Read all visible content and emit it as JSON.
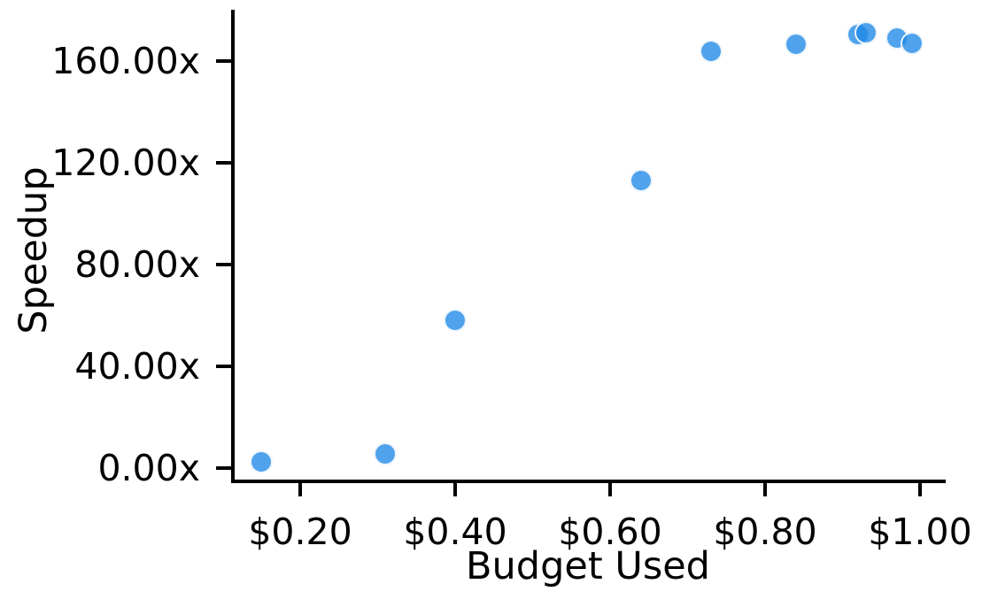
{
  "chart_data": {
    "type": "scatter",
    "title": "",
    "xlabel": "Budget Used",
    "ylabel": "Speedup",
    "x_ticks": [
      {
        "value": 0.2,
        "label": "$0.20"
      },
      {
        "value": 0.4,
        "label": "$0.40"
      },
      {
        "value": 0.6,
        "label": "$0.60"
      },
      {
        "value": 0.8,
        "label": "$0.80"
      },
      {
        "value": 1.0,
        "label": "$1.00"
      }
    ],
    "y_ticks": [
      {
        "value": 0,
        "label": "0.00x"
      },
      {
        "value": 40,
        "label": "40.00x"
      },
      {
        "value": 80,
        "label": "80.00x"
      },
      {
        "value": 120,
        "label": "120.00x"
      },
      {
        "value": 160,
        "label": "160.00x"
      }
    ],
    "xlim": [
      0.113,
      1.033
    ],
    "ylim": [
      -5.2,
      180
    ],
    "grid": false,
    "legend": null,
    "marker": {
      "shape": "circle",
      "fill_color": "#1e88e5",
      "fill_alpha": 0.78,
      "edge_color": "#ffffff"
    },
    "points": [
      {
        "x": 0.15,
        "y": 2.4
      },
      {
        "x": 0.31,
        "y": 5.5
      },
      {
        "x": 0.4,
        "y": 58
      },
      {
        "x": 0.64,
        "y": 113
      },
      {
        "x": 0.73,
        "y": 164
      },
      {
        "x": 0.84,
        "y": 166.5
      },
      {
        "x": 0.92,
        "y": 170.5
      },
      {
        "x": 0.93,
        "y": 171
      },
      {
        "x": 0.97,
        "y": 169
      },
      {
        "x": 0.99,
        "y": 167
      }
    ]
  }
}
